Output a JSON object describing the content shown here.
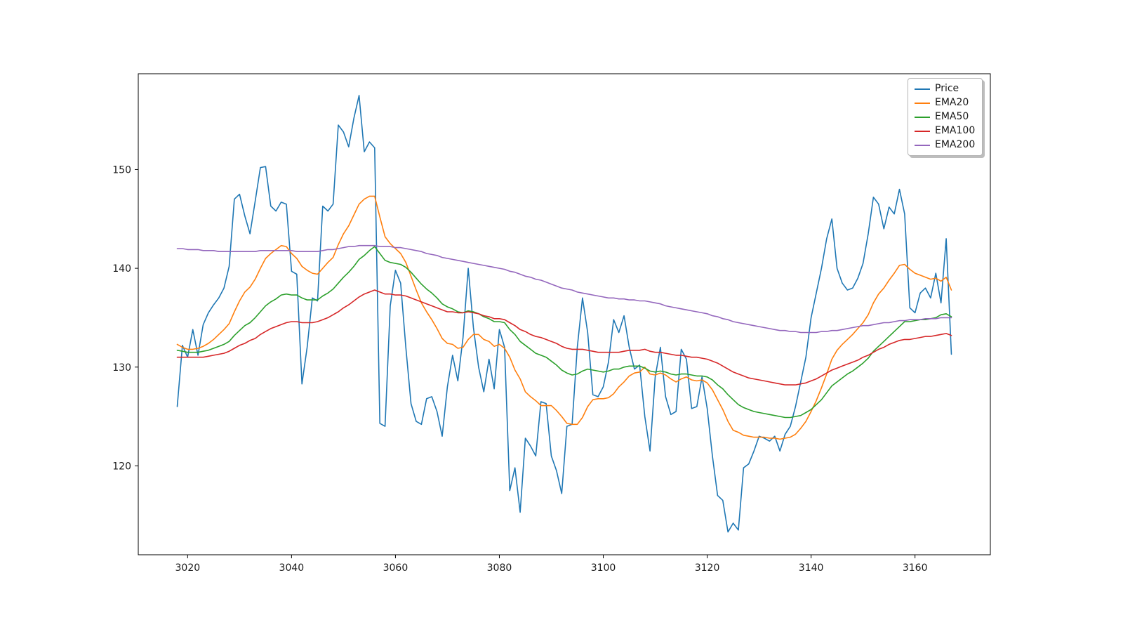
{
  "figure": {
    "background": "#ffffff",
    "axes_border_color": "#000000",
    "tick_label_color": "#1a1a1a"
  },
  "legend": {
    "position": "upper right",
    "entries": [
      {
        "label": "Price",
        "color": "#1f77b4"
      },
      {
        "label": "EMA20",
        "color": "#ff7f0e"
      },
      {
        "label": "EMA50",
        "color": "#2ca02c"
      },
      {
        "label": "EMA100",
        "color": "#d62728"
      },
      {
        "label": "EMA200",
        "color": "#9467bd"
      }
    ]
  },
  "chart_data": {
    "type": "line",
    "title": "",
    "xlabel": "",
    "ylabel": "",
    "grid": false,
    "legend_position": "upper right",
    "xlim": [
      3010.5,
      3174.5
    ],
    "ylim": [
      111.0,
      159.7
    ],
    "xticks": [
      3020,
      3040,
      3060,
      3080,
      3100,
      3120,
      3140,
      3160
    ],
    "yticks": [
      120,
      130,
      140,
      150
    ],
    "x_start": 3018,
    "x_step": 1,
    "series": [
      {
        "name": "Price",
        "color": "#1f77b4",
        "values": [
          126.0,
          132.2,
          131.0,
          133.8,
          131.2,
          134.3,
          135.5,
          136.3,
          137.0,
          138.0,
          140.2,
          147.0,
          147.5,
          145.3,
          143.5,
          146.8,
          150.2,
          150.3,
          146.3,
          145.8,
          146.7,
          146.5,
          139.7,
          139.4,
          128.3,
          132.0,
          137.0,
          136.7,
          146.3,
          145.8,
          146.5,
          154.5,
          153.8,
          152.3,
          155.2,
          157.5,
          151.8,
          152.8,
          152.2,
          124.3,
          124.0,
          136.2,
          139.8,
          138.5,
          132.0,
          126.3,
          124.5,
          124.2,
          126.8,
          127.0,
          125.5,
          123.0,
          128.0,
          131.2,
          128.6,
          133.0,
          140.0,
          134.0,
          130.0,
          127.5,
          130.8,
          127.8,
          133.8,
          132.0,
          117.5,
          119.8,
          115.3,
          122.8,
          122.0,
          121.0,
          126.5,
          126.3,
          121.0,
          119.5,
          117.2,
          124.0,
          124.2,
          132.0,
          137.0,
          133.5,
          127.2,
          127.0,
          128.0,
          130.5,
          134.8,
          133.5,
          135.2,
          132.0,
          129.8,
          130.2,
          125.0,
          121.5,
          129.0,
          132.0,
          127.0,
          125.2,
          125.5,
          131.8,
          130.8,
          125.8,
          126.0,
          129.0,
          125.8,
          121.0,
          117.0,
          116.5,
          113.3,
          114.2,
          113.5,
          119.8,
          120.2,
          121.5,
          123.0,
          122.8,
          122.5,
          123.0,
          121.5,
          123.2,
          124.0,
          126.0,
          128.5,
          131.0,
          135.0,
          137.5,
          140.0,
          143.0,
          145.0,
          140.0,
          138.5,
          137.8,
          138.0,
          139.0,
          140.5,
          143.5,
          147.2,
          146.5,
          144.0,
          146.2,
          145.5,
          148.0,
          145.5,
          136.0,
          135.5,
          137.5,
          138.0,
          137.0,
          139.5,
          136.5,
          143.0,
          131.3
        ]
      },
      {
        "name": "EMA20",
        "color": "#ff7f0e",
        "values": [
          132.3,
          132.0,
          131.8,
          131.8,
          131.9,
          132.1,
          132.4,
          132.8,
          133.3,
          133.8,
          134.4,
          135.6,
          136.7,
          137.6,
          138.1,
          138.9,
          140.0,
          141.0,
          141.5,
          141.9,
          142.3,
          142.2,
          141.5,
          141.0,
          140.2,
          139.8,
          139.5,
          139.4,
          140.0,
          140.6,
          141.1,
          142.4,
          143.5,
          144.3,
          145.4,
          146.5,
          147.0,
          147.3,
          147.3,
          145.2,
          143.2,
          142.5,
          142.0,
          141.5,
          140.6,
          139.2,
          137.8,
          136.5,
          135.6,
          134.8,
          133.9,
          132.9,
          132.4,
          132.3,
          131.9,
          132.0,
          132.8,
          133.3,
          133.3,
          132.8,
          132.6,
          132.1,
          132.3,
          131.9,
          131.0,
          129.7,
          128.8,
          127.5,
          127.0,
          126.6,
          126.1,
          126.1,
          126.1,
          125.6,
          125.0,
          124.3,
          124.2,
          124.2,
          124.9,
          126.0,
          126.7,
          126.8,
          126.8,
          126.9,
          127.3,
          128.0,
          128.5,
          129.1,
          129.4,
          129.5,
          130.0,
          129.3,
          129.2,
          129.4,
          129.2,
          128.8,
          128.5,
          128.8,
          129.0,
          128.7,
          128.6,
          128.7,
          128.4,
          127.7,
          126.7,
          125.7,
          124.5,
          123.6,
          123.4,
          123.1,
          123.0,
          122.9,
          122.9,
          122.9,
          122.8,
          122.8,
          122.7,
          122.8,
          122.9,
          123.2,
          123.8,
          124.5,
          125.5,
          126.6,
          127.9,
          129.3,
          130.8,
          131.7,
          132.3,
          132.8,
          133.3,
          133.9,
          134.5,
          135.3,
          136.5,
          137.4,
          138.0,
          138.8,
          139.5,
          140.3,
          140.4,
          139.9,
          139.5,
          139.3,
          139.1,
          138.9,
          139.0,
          138.7,
          139.1,
          137.8
        ]
      },
      {
        "name": "EMA50",
        "color": "#2ca02c",
        "values": [
          131.7,
          131.6,
          131.5,
          131.5,
          131.5,
          131.6,
          131.7,
          131.9,
          132.1,
          132.3,
          132.6,
          133.2,
          133.7,
          134.2,
          134.5,
          135.0,
          135.6,
          136.2,
          136.6,
          136.9,
          137.3,
          137.4,
          137.3,
          137.3,
          137.0,
          136.8,
          136.8,
          136.8,
          137.2,
          137.5,
          137.9,
          138.5,
          139.1,
          139.6,
          140.2,
          140.9,
          141.3,
          141.8,
          142.2,
          141.5,
          140.8,
          140.6,
          140.5,
          140.4,
          140.1,
          139.6,
          139.0,
          138.4,
          137.9,
          137.5,
          137.0,
          136.4,
          136.1,
          135.9,
          135.6,
          135.5,
          135.7,
          135.6,
          135.4,
          135.1,
          134.9,
          134.6,
          134.6,
          134.5,
          133.8,
          133.3,
          132.6,
          132.2,
          131.8,
          131.4,
          131.2,
          131.0,
          130.6,
          130.2,
          129.7,
          129.4,
          129.2,
          129.3,
          129.6,
          129.8,
          129.7,
          129.6,
          129.5,
          129.6,
          129.8,
          129.8,
          130.0,
          130.1,
          130.1,
          130.1,
          129.9,
          129.6,
          129.5,
          129.6,
          129.5,
          129.3,
          129.2,
          129.3,
          129.3,
          129.2,
          129.1,
          129.1,
          129.0,
          128.7,
          128.2,
          127.8,
          127.2,
          126.7,
          126.2,
          125.9,
          125.7,
          125.5,
          125.4,
          125.3,
          125.2,
          125.1,
          125.0,
          124.9,
          124.9,
          125.0,
          125.1,
          125.4,
          125.7,
          126.2,
          126.7,
          127.4,
          128.1,
          128.5,
          128.9,
          129.3,
          129.6,
          130.0,
          130.4,
          130.9,
          131.6,
          132.1,
          132.6,
          133.1,
          133.6,
          134.1,
          134.6,
          134.6,
          134.7,
          134.8,
          134.8,
          134.9,
          135.0,
          135.3,
          135.4,
          135.1
        ]
      },
      {
        "name": "EMA100",
        "color": "#d62728",
        "values": [
          131.0,
          131.0,
          131.0,
          131.0,
          131.0,
          131.0,
          131.1,
          131.2,
          131.3,
          131.4,
          131.6,
          131.9,
          132.2,
          132.4,
          132.7,
          132.9,
          133.3,
          133.6,
          133.9,
          134.1,
          134.3,
          134.5,
          134.6,
          134.6,
          134.5,
          134.5,
          134.5,
          134.6,
          134.8,
          135.0,
          135.3,
          135.6,
          136.0,
          136.3,
          136.7,
          137.1,
          137.4,
          137.6,
          137.8,
          137.6,
          137.4,
          137.4,
          137.3,
          137.3,
          137.2,
          137.0,
          136.8,
          136.6,
          136.4,
          136.2,
          136.0,
          135.8,
          135.6,
          135.6,
          135.5,
          135.5,
          135.6,
          135.5,
          135.4,
          135.2,
          135.1,
          134.9,
          134.9,
          134.8,
          134.5,
          134.2,
          133.8,
          133.6,
          133.3,
          133.1,
          133.0,
          132.8,
          132.6,
          132.4,
          132.1,
          131.9,
          131.8,
          131.8,
          131.8,
          131.7,
          131.6,
          131.5,
          131.5,
          131.5,
          131.5,
          131.5,
          131.6,
          131.7,
          131.7,
          131.7,
          131.8,
          131.6,
          131.5,
          131.5,
          131.4,
          131.3,
          131.2,
          131.2,
          131.1,
          131.0,
          131.0,
          130.9,
          130.8,
          130.6,
          130.4,
          130.1,
          129.8,
          129.5,
          129.3,
          129.1,
          128.9,
          128.8,
          128.7,
          128.6,
          128.5,
          128.4,
          128.3,
          128.2,
          128.2,
          128.2,
          128.3,
          128.4,
          128.6,
          128.8,
          129.1,
          129.4,
          129.7,
          129.9,
          130.1,
          130.3,
          130.5,
          130.7,
          131.0,
          131.2,
          131.5,
          131.8,
          132.0,
          132.3,
          132.5,
          132.7,
          132.8,
          132.8,
          132.9,
          133.0,
          133.1,
          133.1,
          133.2,
          133.3,
          133.4,
          133.2
        ]
      },
      {
        "name": "EMA200",
        "color": "#9467bd",
        "values": [
          142.0,
          142.0,
          141.9,
          141.9,
          141.9,
          141.8,
          141.8,
          141.8,
          141.7,
          141.7,
          141.7,
          141.7,
          141.7,
          141.7,
          141.7,
          141.7,
          141.8,
          141.8,
          141.8,
          141.8,
          141.8,
          141.8,
          141.8,
          141.7,
          141.7,
          141.7,
          141.7,
          141.7,
          141.8,
          141.9,
          141.9,
          142.0,
          142.1,
          142.2,
          142.2,
          142.3,
          142.3,
          142.3,
          142.3,
          142.2,
          142.2,
          142.2,
          142.1,
          142.1,
          142.0,
          141.9,
          141.8,
          141.7,
          141.5,
          141.4,
          141.3,
          141.1,
          141.0,
          140.9,
          140.8,
          140.7,
          140.6,
          140.5,
          140.4,
          140.3,
          140.2,
          140.1,
          140.0,
          139.9,
          139.7,
          139.6,
          139.4,
          139.2,
          139.1,
          138.9,
          138.8,
          138.6,
          138.4,
          138.2,
          138.0,
          137.9,
          137.8,
          137.6,
          137.5,
          137.4,
          137.3,
          137.2,
          137.1,
          137.0,
          137.0,
          136.9,
          136.9,
          136.8,
          136.8,
          136.7,
          136.7,
          136.6,
          136.5,
          136.4,
          136.2,
          136.1,
          136.0,
          135.9,
          135.8,
          135.7,
          135.6,
          135.5,
          135.4,
          135.2,
          135.1,
          134.9,
          134.8,
          134.6,
          134.5,
          134.4,
          134.3,
          134.2,
          134.1,
          134.0,
          133.9,
          133.8,
          133.7,
          133.7,
          133.6,
          133.6,
          133.5,
          133.5,
          133.5,
          133.5,
          133.6,
          133.6,
          133.7,
          133.7,
          133.8,
          133.9,
          134.0,
          134.1,
          134.2,
          134.2,
          134.3,
          134.4,
          134.5,
          134.5,
          134.6,
          134.7,
          134.7,
          134.8,
          134.8,
          134.8,
          134.9,
          134.9,
          134.9,
          135.0,
          135.0,
          135.0
        ]
      }
    ]
  }
}
